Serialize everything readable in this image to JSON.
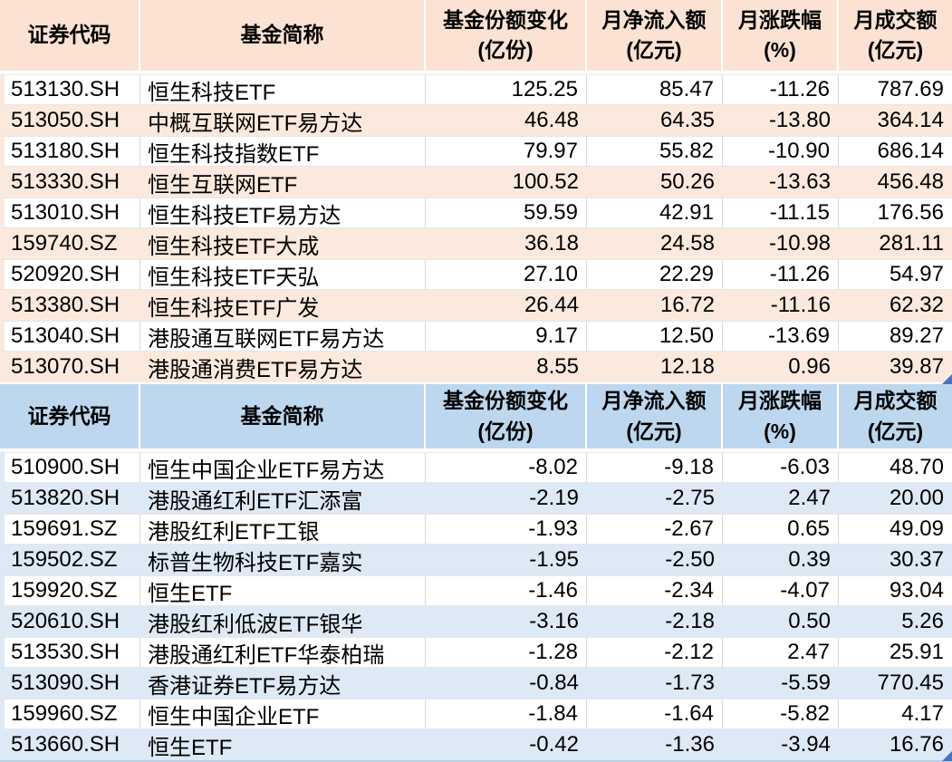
{
  "colors": {
    "table1_header_bg": "#fbe2d3",
    "table1_band_bg": "#fce9dd",
    "table2_header_bg": "#bdd7ee",
    "table2_band_bg": "#dde9f5",
    "grid_line": "#d9d9d9",
    "text": "#000000",
    "fill_handle": "#4472c4"
  },
  "column_keys": [
    "code",
    "name",
    "share_change",
    "net_inflow",
    "pct_change",
    "turnover"
  ],
  "chart_data": [
    {
      "type": "table",
      "theme": "orange",
      "columns": [
        {
          "title": "证券代码",
          "unit": ""
        },
        {
          "title": "基金简称",
          "unit": ""
        },
        {
          "title": "基金份额变化",
          "unit": "(亿份)"
        },
        {
          "title": "月净流入额",
          "unit": "(亿元)"
        },
        {
          "title": "月涨跌幅",
          "unit": "(%)"
        },
        {
          "title": "月成交额",
          "unit": "(亿元)"
        }
      ],
      "rows": [
        [
          "513130.SH",
          "恒生科技ETF",
          "125.25",
          "85.47",
          "-11.26",
          "787.69"
        ],
        [
          "513050.SH",
          "中概互联网ETF易方达",
          "46.48",
          "64.35",
          "-13.80",
          "364.14"
        ],
        [
          "513180.SH",
          "恒生科技指数ETF",
          "79.97",
          "55.82",
          "-10.90",
          "686.14"
        ],
        [
          "513330.SH",
          "恒生互联网ETF",
          "100.52",
          "50.26",
          "-13.63",
          "456.48"
        ],
        [
          "513010.SH",
          "恒生科技ETF易方达",
          "59.59",
          "42.91",
          "-11.15",
          "176.56"
        ],
        [
          "159740.SZ",
          "恒生科技ETF大成",
          "36.18",
          "24.58",
          "-10.98",
          "281.11"
        ],
        [
          "520920.SH",
          "恒生科技ETF天弘",
          "27.10",
          "22.29",
          "-11.26",
          "54.97"
        ],
        [
          "513380.SH",
          "恒生科技ETF广发",
          "26.44",
          "16.72",
          "-11.16",
          "62.32"
        ],
        [
          "513040.SH",
          "港股通互联网ETF易方达",
          "9.17",
          "12.50",
          "-13.69",
          "89.27"
        ],
        [
          "513070.SH",
          "港股通消费ETF易方达",
          "8.55",
          "12.18",
          "0.96",
          "39.87"
        ]
      ]
    },
    {
      "type": "table",
      "theme": "blue",
      "columns": [
        {
          "title": "证券代码",
          "unit": ""
        },
        {
          "title": "基金简称",
          "unit": ""
        },
        {
          "title": "基金份额变化",
          "unit": "(亿份)"
        },
        {
          "title": "月净流入额",
          "unit": "(亿元)"
        },
        {
          "title": "月涨跌幅",
          "unit": "(%)"
        },
        {
          "title": "月成交额",
          "unit": "(亿元)"
        }
      ],
      "rows": [
        [
          "510900.SH",
          "恒生中国企业ETF易方达",
          "-8.02",
          "-9.18",
          "-6.03",
          "48.70"
        ],
        [
          "513820.SH",
          "港股通红利ETF汇添富",
          "-2.19",
          "-2.75",
          "2.47",
          "20.00"
        ],
        [
          "159691.SZ",
          "港股红利ETF工银",
          "-1.93",
          "-2.67",
          "0.65",
          "49.09"
        ],
        [
          "159502.SZ",
          "标普生物科技ETF嘉实",
          "-1.95",
          "-2.50",
          "0.39",
          "30.37"
        ],
        [
          "159920.SZ",
          "恒生ETF",
          "-1.46",
          "-2.34",
          "-4.07",
          "93.04"
        ],
        [
          "520610.SH",
          "港股红利低波ETF银华",
          "-3.16",
          "-2.18",
          "0.50",
          "5.26"
        ],
        [
          "513530.SH",
          "港股通红利ETF华泰柏瑞",
          "-1.28",
          "-2.12",
          "2.47",
          "25.91"
        ],
        [
          "513090.SH",
          "香港证券ETF易方达",
          "-0.84",
          "-1.73",
          "-5.59",
          "770.45"
        ],
        [
          "159960.SZ",
          "恒生中国企业ETF",
          "-1.84",
          "-1.64",
          "-5.82",
          "4.17"
        ],
        [
          "513660.SH",
          "恒生ETF",
          "-0.42",
          "-1.36",
          "-3.94",
          "16.76"
        ]
      ]
    }
  ]
}
